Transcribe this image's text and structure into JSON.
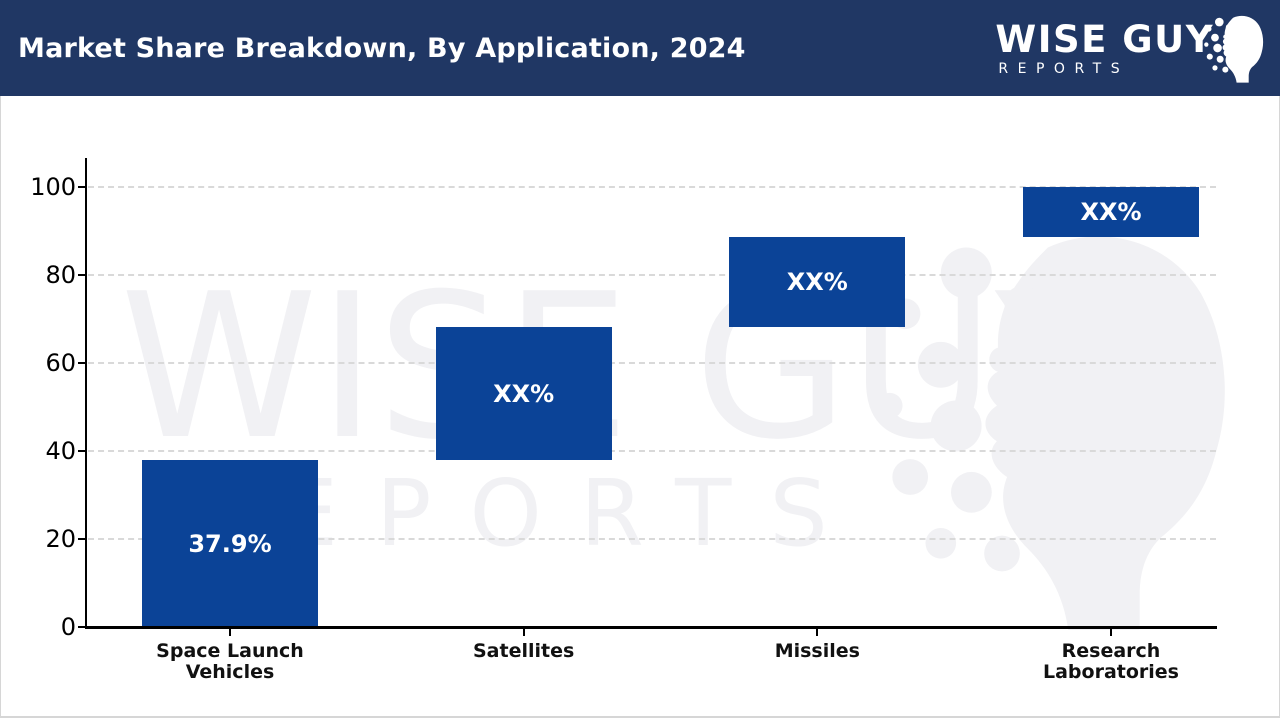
{
  "header": {
    "title": "Market Share Breakdown, By Application, 2024",
    "background_color": "#203764",
    "logo": {
      "wordmark": "WISE GUY",
      "subtext": "REPORTS",
      "head_icon": "dotted-head-profile"
    }
  },
  "watermark": {
    "line1": "WISE GUY",
    "line2": "REPORTS",
    "head_icon": "dotted-head-profile",
    "color": "#f1f1f4"
  },
  "chart_data": {
    "type": "bar",
    "subtype": "waterfall-floating-bars",
    "title": "Market Share Breakdown, By Application, 2024",
    "categories": [
      "Space Launch Vehicles",
      "Satellites",
      "Missiles",
      "Research Laboratories"
    ],
    "categories_lines": [
      [
        "Space Launch",
        "Vehicles"
      ],
      [
        "Satellites"
      ],
      [
        "Missiles"
      ],
      [
        "Research",
        "Laboratories"
      ]
    ],
    "segments": [
      {
        "category": "Space Launch Vehicles",
        "start": 0,
        "end": 37.9,
        "value_label": "37.9%"
      },
      {
        "category": "Satellites",
        "start": 37.9,
        "end": 68.1,
        "value_label": "XX%"
      },
      {
        "category": "Missiles",
        "start": 68.1,
        "end": 88.5,
        "value_label": "XX%"
      },
      {
        "category": "Research Laboratories",
        "start": 88.5,
        "end": 100.0,
        "value_label": "XX%"
      }
    ],
    "yticks": [
      0,
      20,
      40,
      60,
      80,
      100
    ],
    "ylim": [
      0,
      106
    ],
    "xlabel": "",
    "ylabel": "",
    "grid": "horizontal-dashed",
    "legend": "none",
    "bar_color": "#0b4397",
    "bar_label_color": "#ffffff",
    "axis_color": "#000000",
    "grid_color": "#d9d9d9",
    "tick_label_color": "#000000"
  }
}
